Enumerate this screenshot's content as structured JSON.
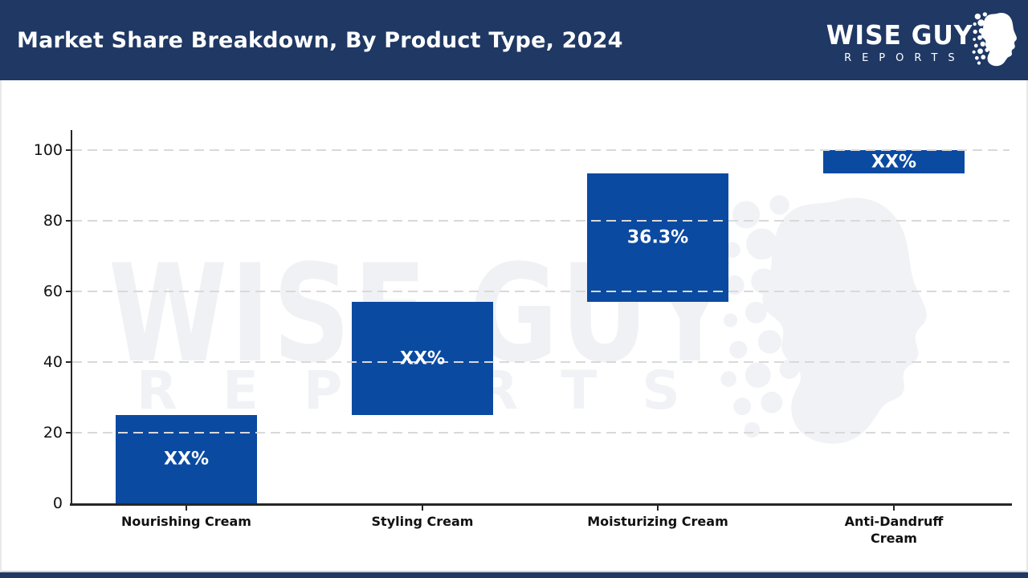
{
  "header": {
    "title": "Market Share Breakdown, By Product Type, 2024",
    "logo": {
      "name": "WISE GUY",
      "sub": "REPORTS"
    }
  },
  "watermark": {
    "line1": "WISE GUY",
    "line2": "REPORTS"
  },
  "chart_data": {
    "type": "bar",
    "subtype": "waterfall",
    "title": "Market Share Breakdown, By Product Type, 2024",
    "categories": [
      "Nourishing Cream",
      "Styling Cream",
      "Moisturizing Cream",
      "Anti-Dandruff Cream"
    ],
    "bars": [
      {
        "category": "Nourishing Cream",
        "start": 0,
        "end": 25,
        "label": "XX%"
      },
      {
        "category": "Styling Cream",
        "start": 25,
        "end": 57,
        "label": "XX%"
      },
      {
        "category": "Moisturizing Cream",
        "start": 57,
        "end": 93.3,
        "value": 36.3,
        "label": "36.3%"
      },
      {
        "category": "Anti-Dandruff Cream",
        "start": 93.3,
        "end": 100,
        "label": "XX%"
      }
    ],
    "xlabel": "",
    "ylabel": "",
    "ylim": [
      0,
      105
    ],
    "yticks": [
      0,
      20,
      40,
      60,
      80,
      100
    ],
    "grid": "horizontal-dashed",
    "legend": "none"
  },
  "colors": {
    "header_bg": "#1f3864",
    "bar": "#0b4aa1",
    "grid": "#d9d9d9",
    "watermark": "#f0f1f4"
  }
}
